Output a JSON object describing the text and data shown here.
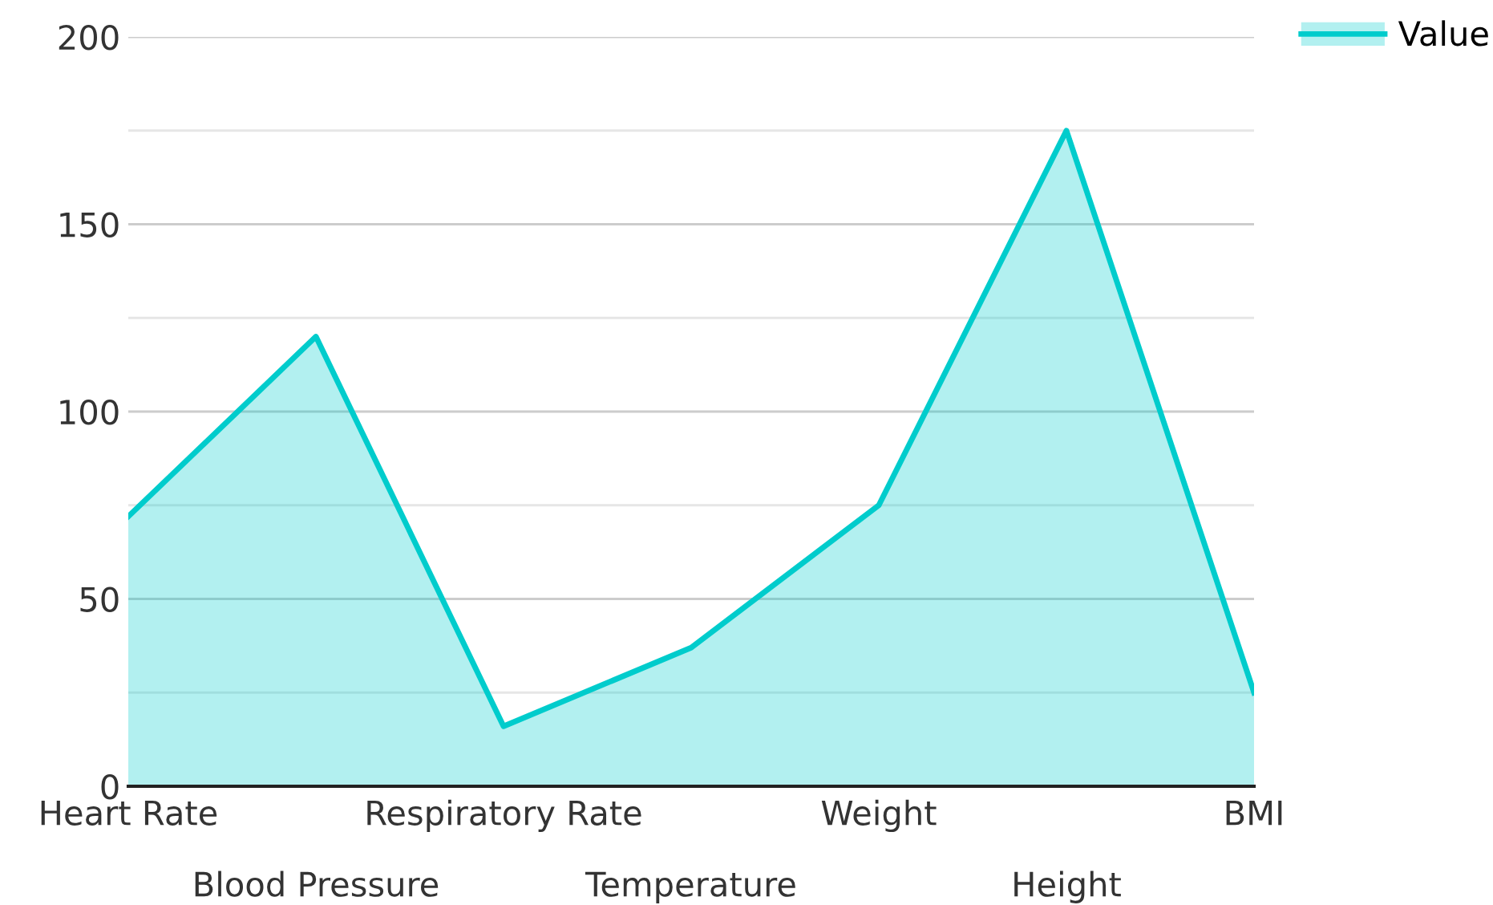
{
  "chart_data": {
    "type": "area",
    "categories": [
      "Heart Rate",
      "Blood Pressure",
      "Respiratory Rate",
      "Temperature",
      "Weight",
      "Height",
      "BMI"
    ],
    "series": [
      {
        "name": "Value",
        "color": "#00cccc",
        "values": [
          72,
          120,
          16,
          37,
          75,
          175,
          25
        ]
      }
    ],
    "ylim": [
      0,
      200
    ],
    "yticks": [
      0,
      {
        "value": 25,
        "label": null
      },
      50,
      {
        "value": 75,
        "label": null
      },
      100,
      {
        "value": 125,
        "label": null
      },
      150,
      {
        "value": 175,
        "label": null
      },
      200
    ],
    "grid": "y",
    "legend": "top right",
    "line_style": "solid",
    "marker": "none"
  }
}
